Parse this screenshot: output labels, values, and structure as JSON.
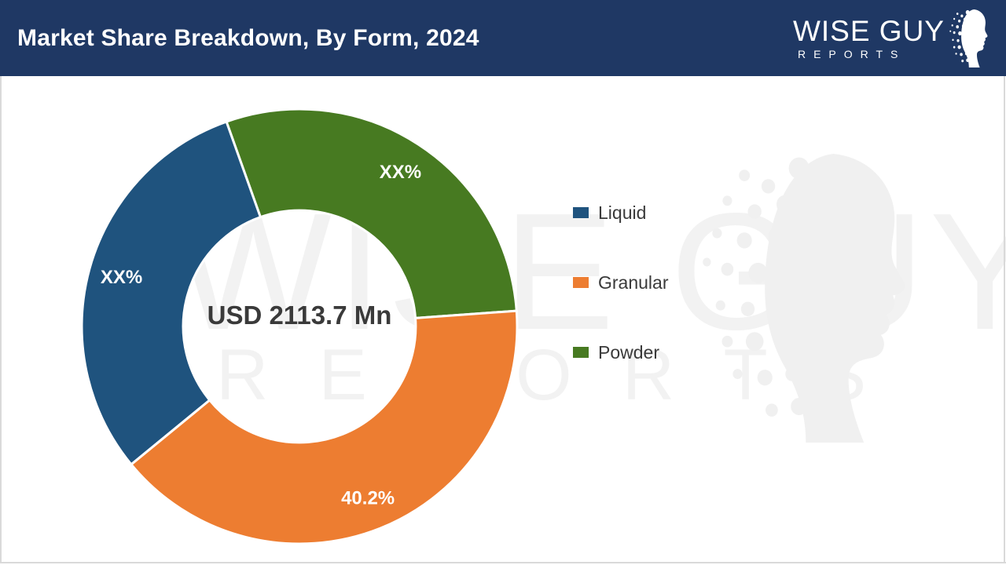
{
  "header": {
    "title": "Market Share Breakdown, By Form, 2024",
    "bg_color": "#1f3864",
    "logo": {
      "line1": "WISE GUY",
      "line2": "REPORTS"
    }
  },
  "watermark": {
    "line1": "WISE GUY",
    "line2": "REPORTS"
  },
  "chart_data": {
    "type": "donut",
    "title": "Market Share Breakdown, By Form, 2024",
    "center_label": "USD 2113.7 Mn",
    "start_angle_deg": -19.6,
    "inner_radius_ratio": 0.534,
    "label_radius_px": 235,
    "segments": [
      {
        "label": "Powder",
        "value": 29.3,
        "display_label": "XX%",
        "color": "#477a21"
      },
      {
        "label": "Granular",
        "value": 40.2,
        "display_label": "40.2%",
        "color": "#ed7d31"
      },
      {
        "label": "Liquid",
        "value": 30.5,
        "display_label": "XX%",
        "color": "#1f537e"
      }
    ],
    "legend": [
      {
        "label": "Liquid",
        "color": "#1f537e"
      },
      {
        "label": "Granular",
        "color": "#ed7d31"
      },
      {
        "label": "Powder",
        "color": "#477a21"
      }
    ],
    "legend_position": "right",
    "note": "XX% labels are masked values in the source image"
  }
}
